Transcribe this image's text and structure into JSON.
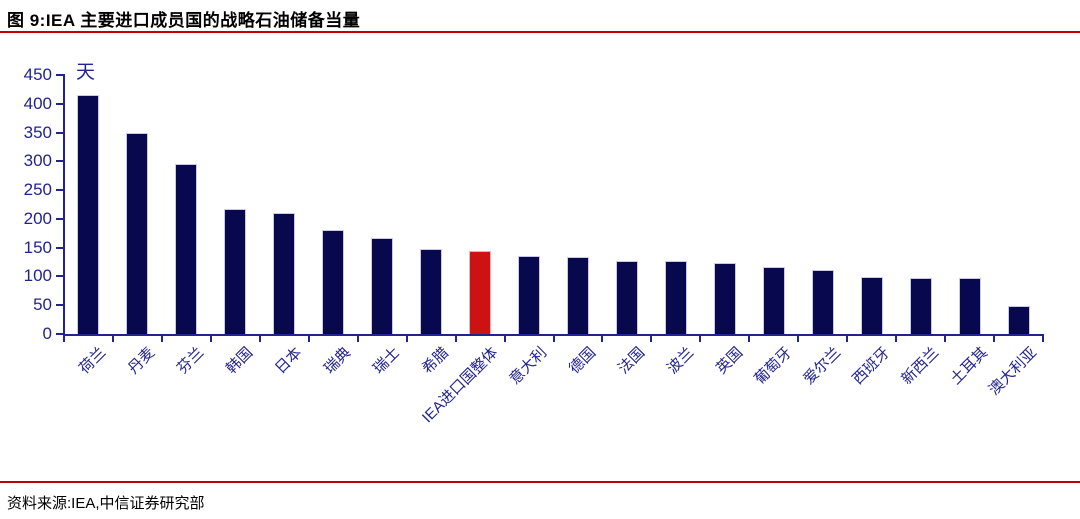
{
  "header": {
    "title": "图 9:IEA 主要进口成员国的战略石油储备当量"
  },
  "footer": {
    "source": "资料来源:IEA,中信证券研究部"
  },
  "colors": {
    "bar": "#08084e",
    "highlight": "#cc1212",
    "axis": "#23238f",
    "divider": "#c00000"
  },
  "chart_data": {
    "type": "bar",
    "title": "图 9:IEA 主要进口成员国的战略石油储备当量",
    "unit_label": "天",
    "categories": [
      "荷兰",
      "丹麦",
      "芬兰",
      "韩国",
      "日本",
      "瑞典",
      "瑞士",
      "希腊",
      "IEA进口国整体",
      "意大利",
      "德国",
      "法国",
      "波兰",
      "英国",
      "葡萄牙",
      "爱尔兰",
      "西班牙",
      "新西兰",
      "土耳其",
      "澳大利亚"
    ],
    "values": [
      416,
      350,
      296,
      218,
      210,
      181,
      166,
      148,
      144,
      136,
      134,
      127,
      126,
      124,
      116,
      111,
      99,
      97,
      97,
      49
    ],
    "highlight_index": 8,
    "highlight_category": "IEA进口国整体",
    "xlabel": "",
    "ylabel": "天",
    "ylim": [
      0,
      450
    ],
    "ytick_step": 50,
    "grid": false,
    "legend": "none",
    "source": "资料来源:IEA,中信证券研究部"
  }
}
